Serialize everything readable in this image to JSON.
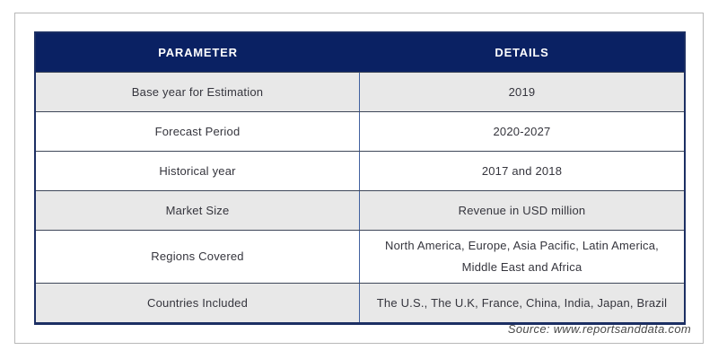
{
  "colors": {
    "header_bg": "#0a2163",
    "header_text": "#ffffff",
    "shaded_row_bg": "#e8e8e8",
    "row_bg": "#ffffff",
    "table_border": "#1c2f63",
    "row_divider": "#3e4759",
    "column_divider": "#41619f",
    "frame_border": "#b8b8b8",
    "body_text": "#35353d",
    "source_text": "#4a4a4a"
  },
  "table": {
    "columns": [
      {
        "label": "PARAMETER"
      },
      {
        "label": "DETAILS"
      }
    ],
    "rows": [
      {
        "parameter": "Base year for Estimation",
        "details": "2019",
        "shaded": true
      },
      {
        "parameter": "Forecast Period",
        "details": "2020-2027",
        "shaded": false
      },
      {
        "parameter": "Historical year",
        "details": "2017 and 2018",
        "shaded": false
      },
      {
        "parameter": "Market Size",
        "details": "Revenue in USD million",
        "shaded": true
      },
      {
        "parameter": "Regions Covered",
        "details": "North America, Europe, Asia Pacific, Latin America, Middle East and Africa",
        "shaded": false
      },
      {
        "parameter": "Countries Included",
        "details": "The U.S., The  U.K, France, China, India, Japan, Brazil",
        "shaded": true
      }
    ]
  },
  "footer": {
    "source": "Source: www.reportsanddata.com"
  }
}
